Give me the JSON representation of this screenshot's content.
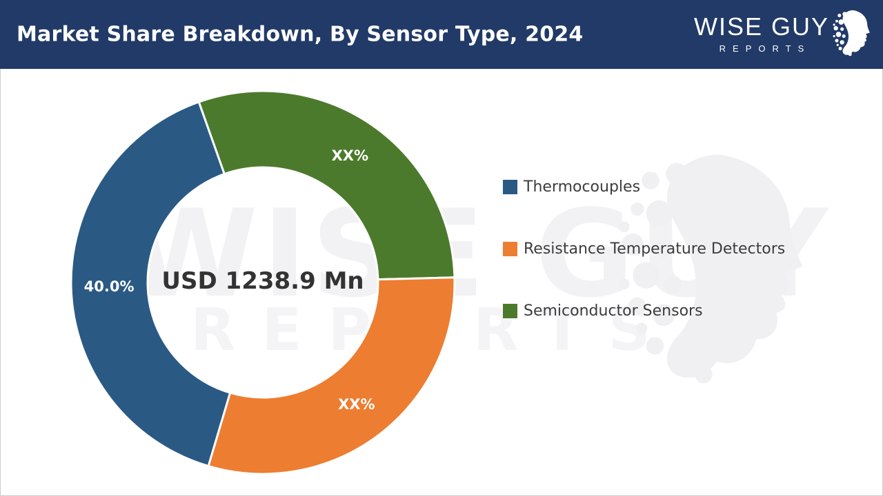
{
  "header": {
    "title": "Market Share Breakdown, By Sensor Type, 2024",
    "logo": {
      "line1": "WISE GUY",
      "line2": "REPORTS"
    }
  },
  "watermark": {
    "line1": "WISE GUY",
    "line2": "REPORTS"
  },
  "chart_data": {
    "type": "donut",
    "title": "Market Share Breakdown, By Sensor Type, 2024",
    "center_label": "USD 1238.9 Mn",
    "series": [
      {
        "name": "Thermocouples",
        "value": 40.0,
        "label": "40.0%",
        "color": "#2a5a84"
      },
      {
        "name": "Resistance Temperature Detectors",
        "value": 30.0,
        "label": "XX%",
        "color": "#ed7d31"
      },
      {
        "name": "Semiconductor Sensors",
        "value": 30.0,
        "label": "XX%",
        "color": "#4c7a2d"
      }
    ],
    "start_angle_deg": 109.5,
    "direction": "clockwise",
    "slice_draw_order": [
      2,
      1,
      0
    ],
    "legend_position": "right",
    "colors": {
      "header_bg": "#213a67",
      "center_text": "#333333",
      "legend_text": "#3c3c3c",
      "watermark": "#f2f2f4",
      "slice_gap": "#ffffff"
    }
  }
}
